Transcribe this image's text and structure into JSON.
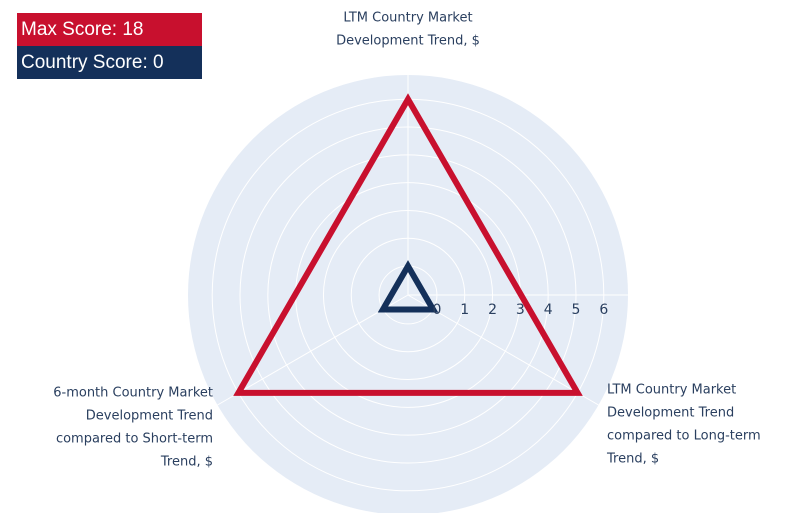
{
  "chart_data": {
    "type": "radar",
    "categories": [
      [
        "LTM Country Market",
        "Development Trend, $"
      ],
      [
        "LTM Country Market",
        "Development Trend",
        "compared to Long-term",
        "Trend, $"
      ],
      [
        "6-month Country Market",
        "Development Trend",
        "compared to Short-term",
        "Trend, $"
      ]
    ],
    "series": [
      {
        "name": "Max Score: 18",
        "color": "#c8102e",
        "values": [
          6,
          6,
          6
        ]
      },
      {
        "name": "Country Score: 0",
        "color": "#14305a",
        "values": [
          0,
          0,
          0
        ]
      }
    ],
    "ylim": [
      -1.04,
      6.87
    ],
    "yticks": [
      0,
      1,
      2,
      3,
      4,
      5,
      6
    ],
    "grid": true
  }
}
